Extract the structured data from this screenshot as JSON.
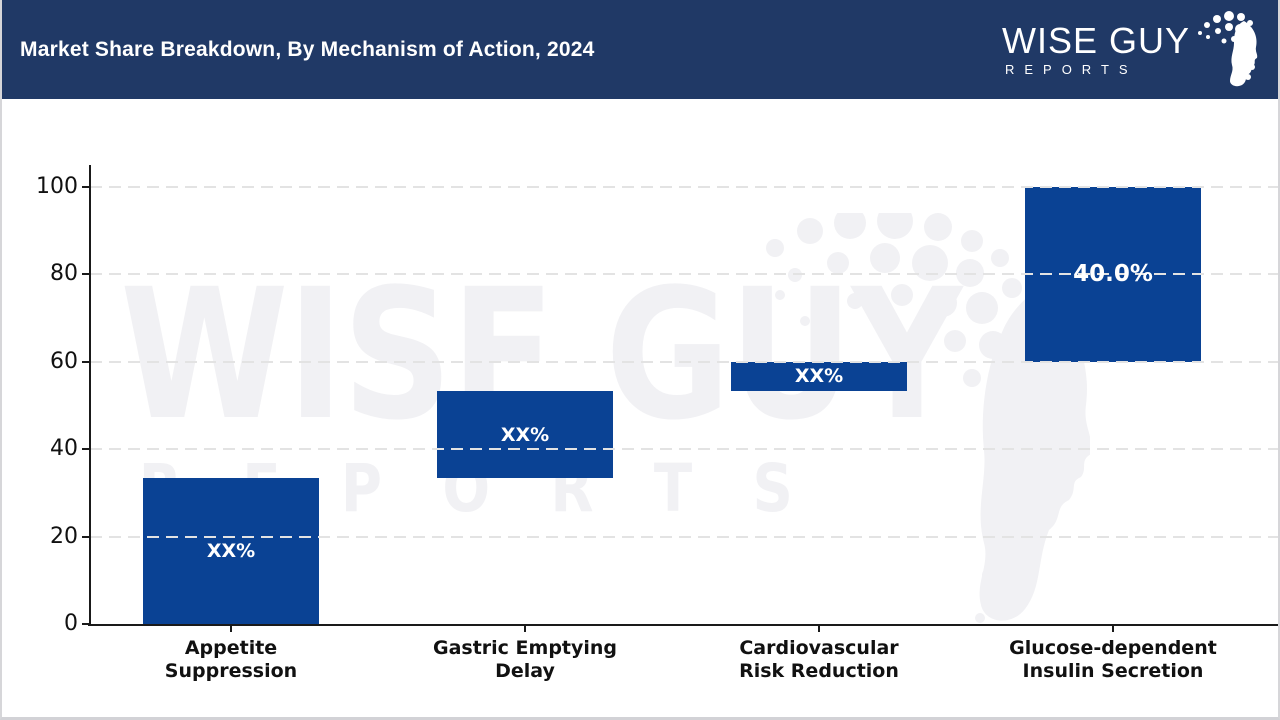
{
  "header": {
    "title": "Market Share Breakdown, By Mechanism of Action, 2024",
    "logo": {
      "wordmark": "WISE GUY",
      "subtitle": "REPORTS"
    }
  },
  "watermark": {
    "wordmark": "WISE GUY",
    "subtitle": "R E P O R T S"
  },
  "chart_data": {
    "type": "bar",
    "variant": "waterfall",
    "title": "Market Share Breakdown, By Mechanism of Action, 2024",
    "categories": [
      {
        "line1": "Appetite",
        "line2": "Suppression"
      },
      {
        "line1": "Gastric Emptying",
        "line2": "Delay"
      },
      {
        "line1": "Cardiovascular",
        "line2": "Risk Reduction"
      },
      {
        "line1": "Glucose-dependent",
        "line2": "Insulin Secretion"
      }
    ],
    "segments": [
      {
        "category": "Appetite Suppression",
        "start": 0,
        "end": 33.3,
        "value": 33.3,
        "label": "XX%"
      },
      {
        "category": "Gastric Emptying Delay",
        "start": 33.3,
        "end": 53.3,
        "value": 20.0,
        "label": "XX%"
      },
      {
        "category": "Cardiovascular Risk Reduction",
        "start": 53.3,
        "end": 60.0,
        "value": 6.7,
        "label": "XX%"
      },
      {
        "category": "Glucose-dependent Insulin Secretion",
        "start": 60.0,
        "end": 100.0,
        "value": 40.0,
        "label": "40.0%"
      }
    ],
    "ylim": [
      0,
      100
    ],
    "yticks": [
      0,
      20,
      40,
      60,
      80,
      100
    ],
    "xlabel": "",
    "ylabel": "",
    "grid": true,
    "legend": null,
    "colors": {
      "bar": "#0a4294",
      "header_bg": "#203966",
      "grid": "#e3e3e3",
      "axis": "#1a1a1a",
      "bar_label": "#ffffff"
    }
  }
}
